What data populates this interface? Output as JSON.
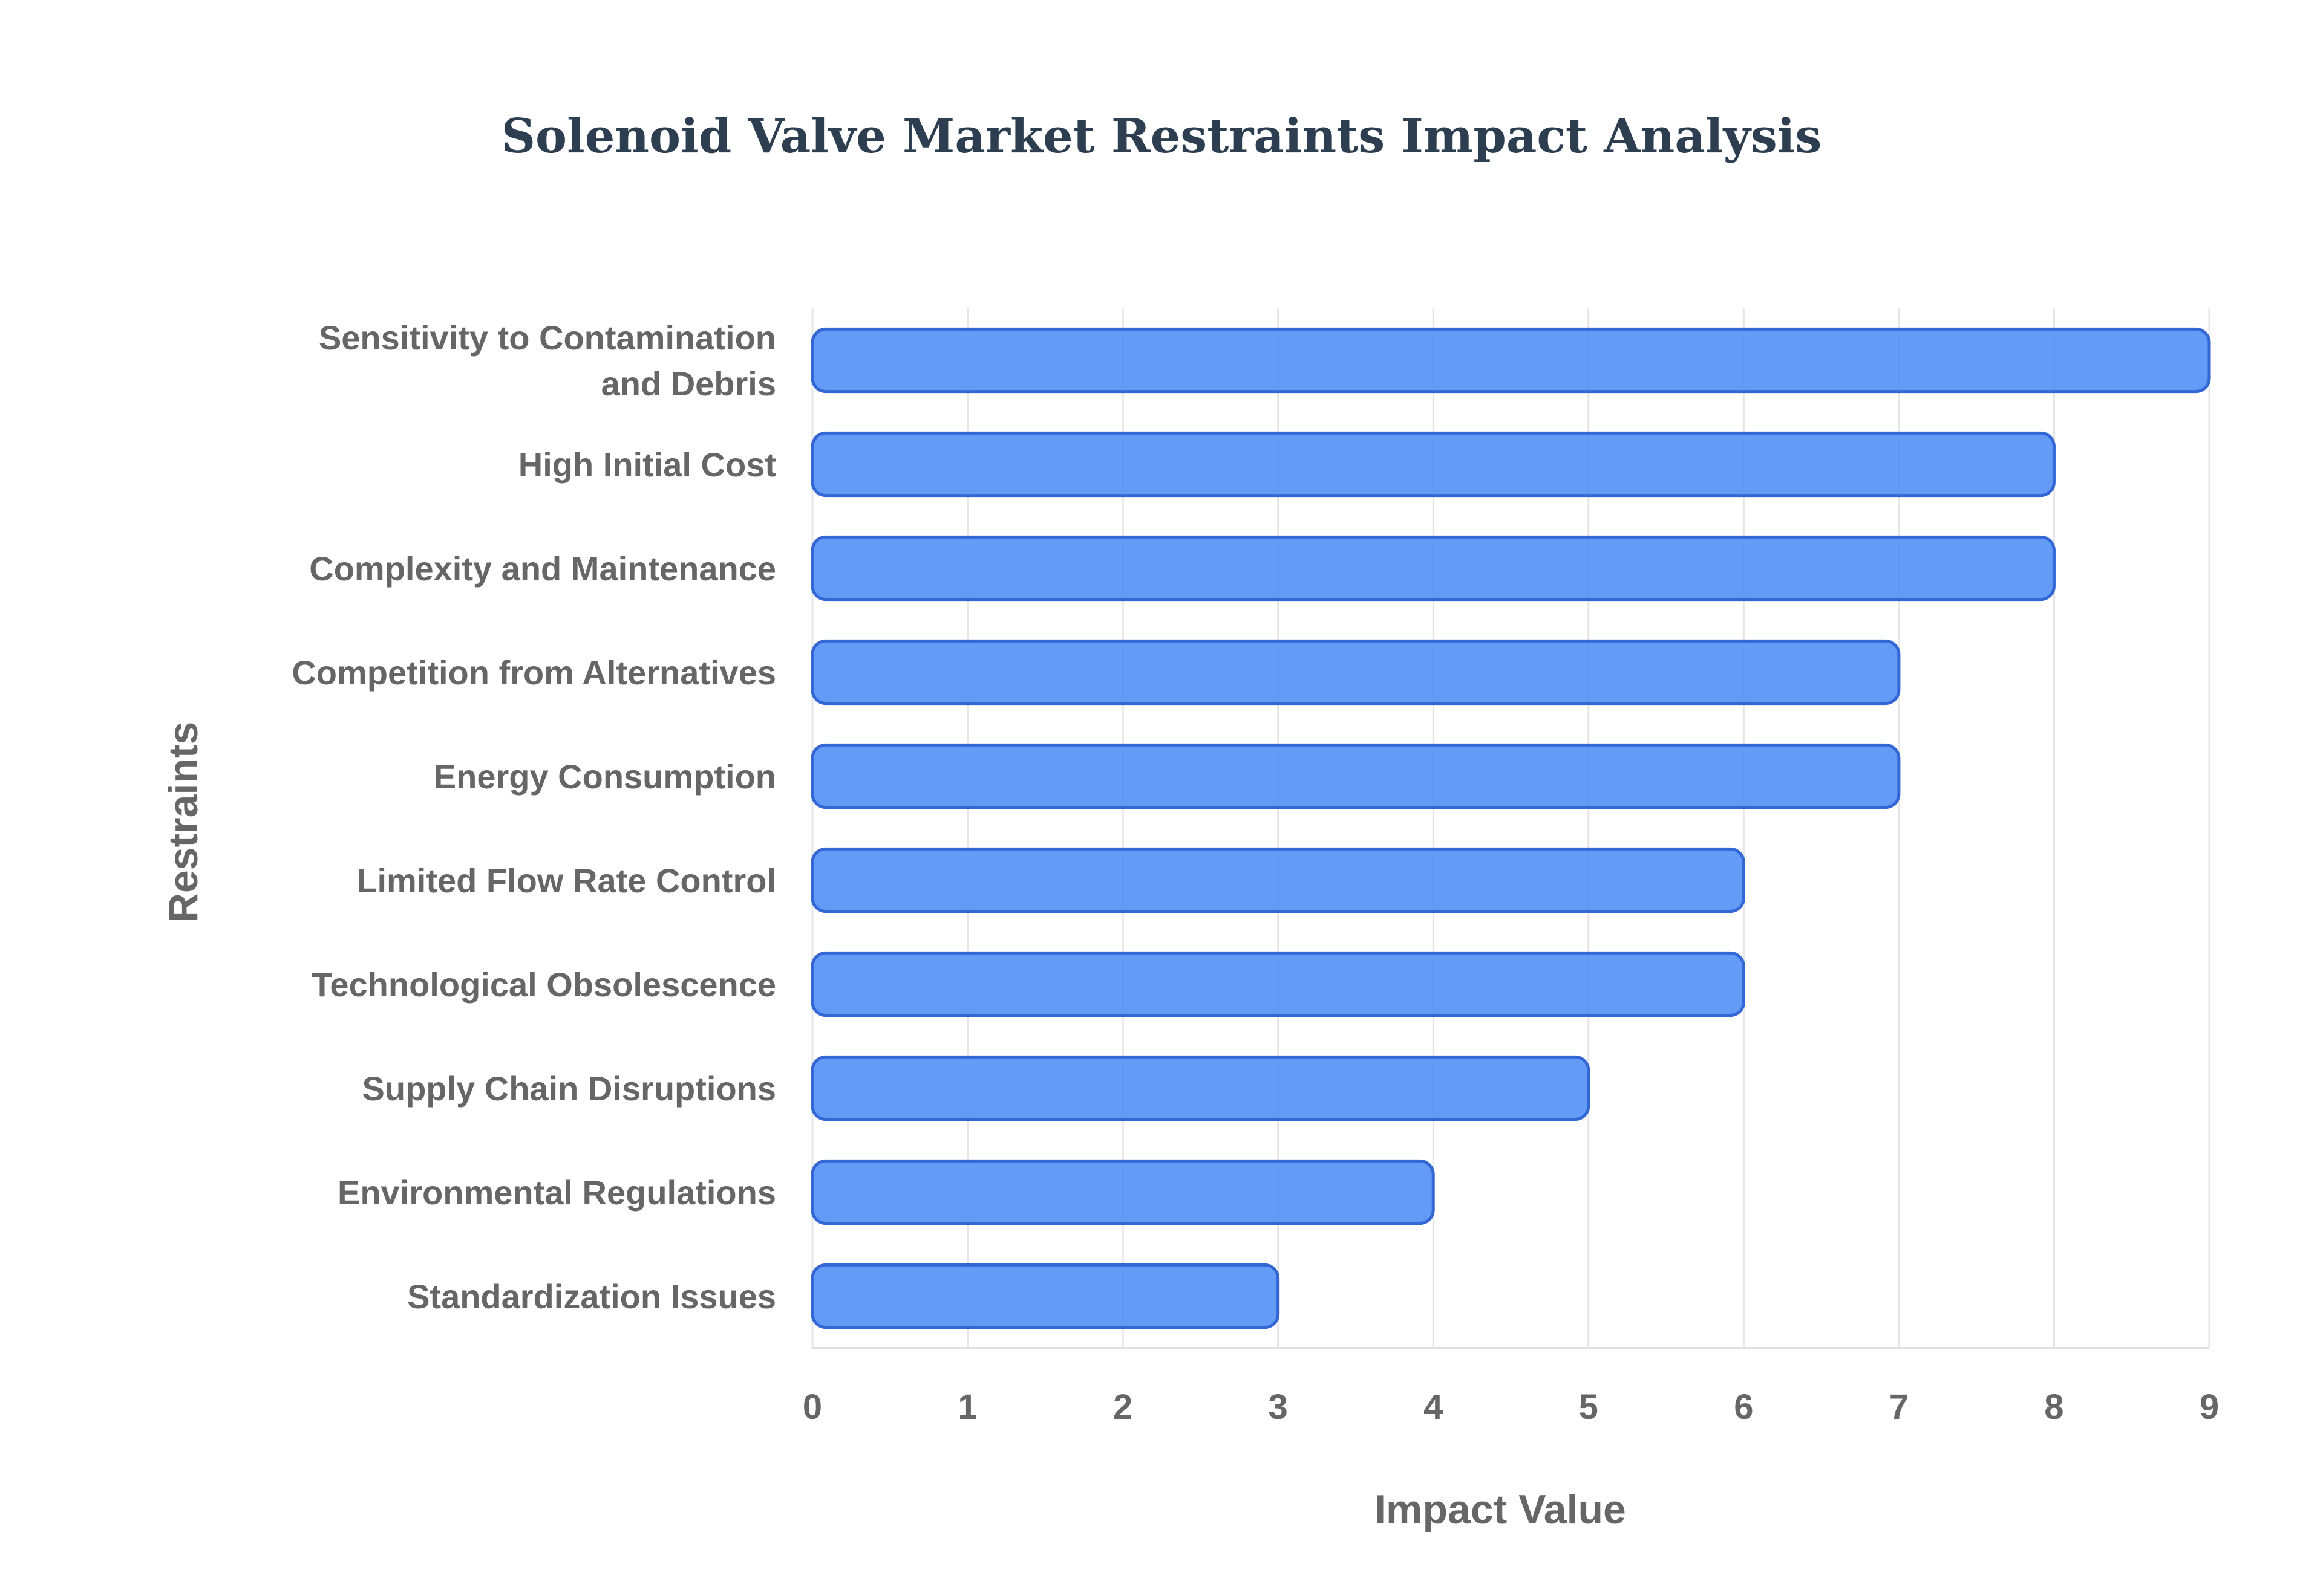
{
  "chart_data": {
    "type": "bar",
    "orientation": "horizontal",
    "title": "Solenoid Valve Market Restraints Impact Analysis",
    "xlabel": "Impact Value",
    "ylabel": "Restraints",
    "xlim": [
      0,
      9
    ],
    "xticks": [
      "0",
      "1",
      "2",
      "3",
      "4",
      "5",
      "6",
      "7",
      "8",
      "9"
    ],
    "grid": true,
    "legend": "none",
    "bar_color": "#4285f4",
    "bar_edge_color": "#3367d6",
    "categories": [
      [
        "Sensitivity to Contamination",
        "and Debris"
      ],
      [
        "High Initial Cost"
      ],
      [
        "Complexity and Maintenance"
      ],
      [
        "Competition from Alternatives"
      ],
      [
        "Energy Consumption"
      ],
      [
        "Limited Flow Rate Control"
      ],
      [
        "Technological Obsolescence"
      ],
      [
        "Supply Chain Disruptions"
      ],
      [
        "Environmental Regulations"
      ],
      [
        "Standardization Issues"
      ]
    ],
    "values": [
      9,
      8,
      8,
      7,
      7,
      6,
      6,
      5,
      4,
      3
    ]
  }
}
